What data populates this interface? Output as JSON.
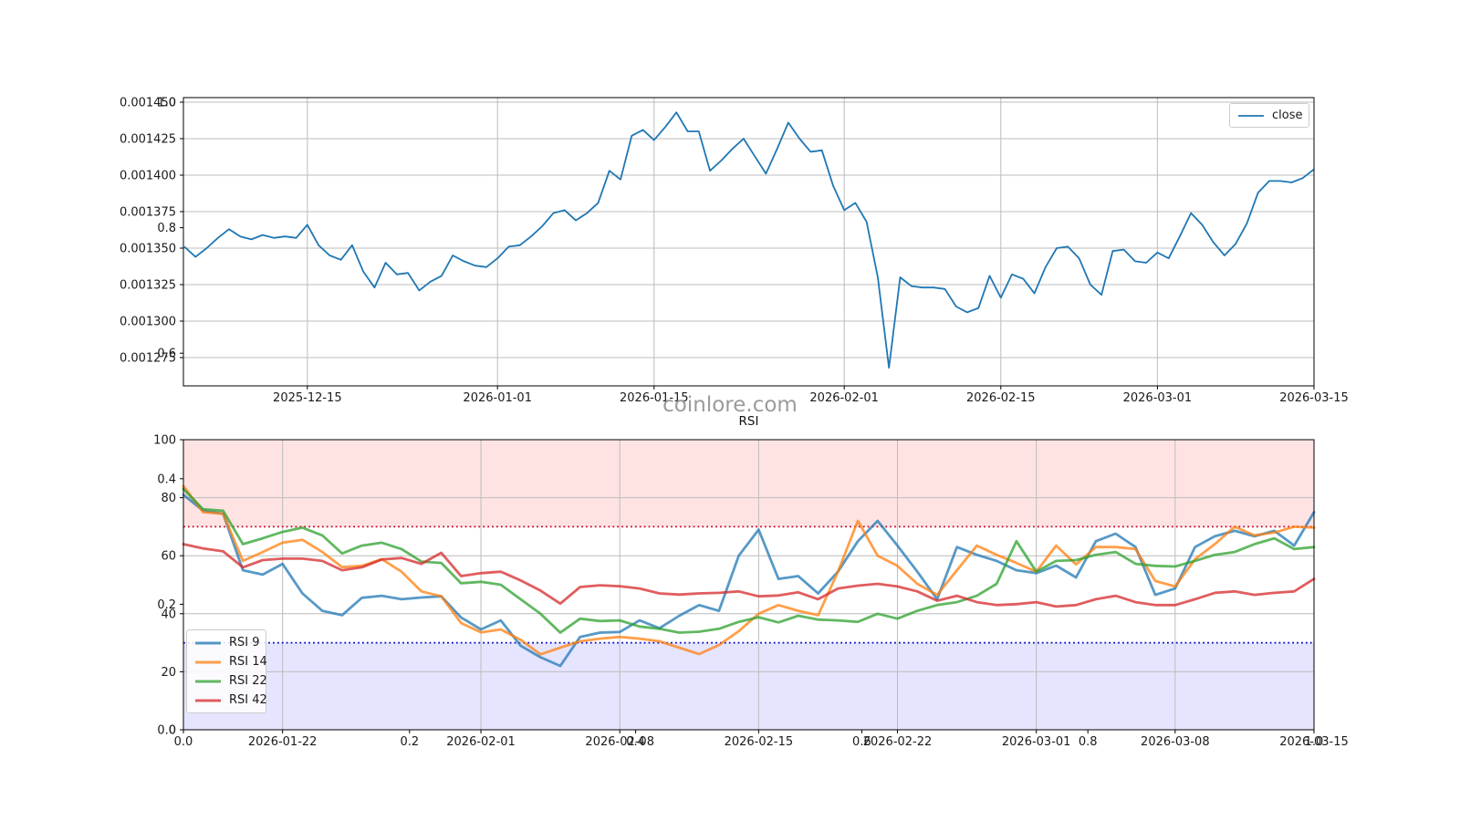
{
  "watermark": "coinlore.com",
  "overlay_axis": {
    "x_tick_labels": [
      "0.0",
      "0.2",
      "0.4",
      "0.6",
      "0.8",
      "1.0"
    ],
    "y_tick_labels": [
      "1.0",
      "0.8",
      "0.6",
      "0.4",
      "0.2",
      "0.0"
    ]
  },
  "chart_data": [
    {
      "type": "line",
      "id": "price",
      "title": "",
      "legend_position": "upper right",
      "grid": true,
      "x": [
        "2025-12-04",
        "2025-12-05",
        "2025-12-06",
        "2025-12-07",
        "2025-12-08",
        "2025-12-09",
        "2025-12-10",
        "2025-12-11",
        "2025-12-12",
        "2025-12-13",
        "2025-12-14",
        "2025-12-15",
        "2025-12-16",
        "2025-12-17",
        "2025-12-18",
        "2025-12-19",
        "2025-12-20",
        "2025-12-21",
        "2025-12-22",
        "2025-12-23",
        "2025-12-24",
        "2025-12-25",
        "2025-12-26",
        "2025-12-27",
        "2025-12-28",
        "2025-12-29",
        "2025-12-30",
        "2025-12-31",
        "2026-01-01",
        "2026-01-02",
        "2026-01-03",
        "2026-01-04",
        "2026-01-05",
        "2026-01-06",
        "2026-01-07",
        "2026-01-08",
        "2026-01-09",
        "2026-01-10",
        "2026-01-11",
        "2026-01-12",
        "2026-01-13",
        "2026-01-14",
        "2026-01-15",
        "2026-01-16",
        "2026-01-17",
        "2026-01-18",
        "2026-01-19",
        "2026-01-20",
        "2026-01-21",
        "2026-01-22",
        "2026-01-23",
        "2026-01-24",
        "2026-01-25",
        "2026-01-26",
        "2026-01-27",
        "2026-01-28",
        "2026-01-29",
        "2026-01-30",
        "2026-01-31",
        "2026-02-01",
        "2026-02-02",
        "2026-02-03",
        "2026-02-04",
        "2026-02-05",
        "2026-02-06",
        "2026-02-07",
        "2026-02-08",
        "2026-02-09",
        "2026-02-10",
        "2026-02-11",
        "2026-02-12",
        "2026-02-13",
        "2026-02-14",
        "2026-02-15",
        "2026-02-16",
        "2026-02-17",
        "2026-02-18",
        "2026-02-19",
        "2026-02-20",
        "2026-02-21",
        "2026-02-22",
        "2026-02-23",
        "2026-02-24",
        "2026-02-25",
        "2026-02-26",
        "2026-02-27",
        "2026-02-28",
        "2026-03-01",
        "2026-03-02",
        "2026-03-03",
        "2026-03-04",
        "2026-03-05",
        "2026-03-06",
        "2026-03-07",
        "2026-03-08",
        "2026-03-09",
        "2026-03-10",
        "2026-03-11",
        "2026-03-12",
        "2026-03-13",
        "2026-03-14",
        "2026-03-15"
      ],
      "series": [
        {
          "name": "close",
          "color": "#1f77b4",
          "alpha": 1,
          "values": [
            0.001351,
            0.001344,
            0.00135,
            0.001357,
            0.001363,
            0.001358,
            0.001356,
            0.001359,
            0.001357,
            0.001358,
            0.001357,
            0.001366,
            0.001352,
            0.001345,
            0.001342,
            0.001352,
            0.001334,
            0.001323,
            0.00134,
            0.001332,
            0.001333,
            0.001321,
            0.001327,
            0.001331,
            0.001345,
            0.001341,
            0.001338,
            0.001337,
            0.001343,
            0.001351,
            0.001352,
            0.001358,
            0.001365,
            0.001374,
            0.001376,
            0.001369,
            0.001374,
            0.001381,
            0.001403,
            0.001397,
            0.001427,
            0.001431,
            0.001424,
            0.001433,
            0.001443,
            0.00143,
            0.00143,
            0.001403,
            0.00141,
            0.001418,
            0.001425,
            0.001413,
            0.001401,
            0.001418,
            0.001436,
            0.001425,
            0.001416,
            0.001417,
            0.001393,
            0.001376,
            0.001381,
            0.001368,
            0.00133,
            0.001268,
            0.00133,
            0.001324,
            0.001323,
            0.001323,
            0.001322,
            0.00131,
            0.001306,
            0.001309,
            0.001331,
            0.001316,
            0.001332,
            0.001329,
            0.001319,
            0.001337,
            0.00135,
            0.001351,
            0.001343,
            0.001325,
            0.001318,
            0.001348,
            0.001349,
            0.001341,
            0.00134,
            0.001347,
            0.001343,
            0.001358,
            0.001374,
            0.001366,
            0.001354,
            0.001345,
            0.001353,
            0.001367,
            0.001388,
            0.001396,
            0.001396,
            0.001395,
            0.001398,
            0.001404
          ]
        }
      ],
      "x_tick_labels": [
        "2025-12-15",
        "2026-01-01",
        "2026-01-15",
        "2026-02-01",
        "2026-02-15",
        "2026-03-01",
        "2026-03-15"
      ],
      "y_tick_labels": [
        "0.001450",
        "0.001425",
        "0.001400",
        "0.001375",
        "0.001350",
        "0.001325",
        "0.001300",
        "0.001275"
      ],
      "ylim": [
        0.001255625,
        0.001453125
      ]
    },
    {
      "type": "line",
      "id": "rsi",
      "title": "RSI",
      "legend_position": "lower left",
      "grid": true,
      "x": [
        "2026-01-17",
        "2026-01-18",
        "2026-01-19",
        "2026-01-20",
        "2026-01-21",
        "2026-01-22",
        "2026-01-23",
        "2026-01-24",
        "2026-01-25",
        "2026-01-26",
        "2026-01-27",
        "2026-01-28",
        "2026-01-29",
        "2026-01-30",
        "2026-01-31",
        "2026-02-01",
        "2026-02-02",
        "2026-02-03",
        "2026-02-04",
        "2026-02-05",
        "2026-02-06",
        "2026-02-07",
        "2026-02-08",
        "2026-02-09",
        "2026-02-10",
        "2026-02-11",
        "2026-02-12",
        "2026-02-13",
        "2026-02-14",
        "2026-02-15",
        "2026-02-16",
        "2026-02-17",
        "2026-02-18",
        "2026-02-19",
        "2026-02-20",
        "2026-02-21",
        "2026-02-22",
        "2026-02-23",
        "2026-02-24",
        "2026-02-25",
        "2026-02-26",
        "2026-02-27",
        "2026-02-28",
        "2026-03-01",
        "2026-03-02",
        "2026-03-03",
        "2026-03-04",
        "2026-03-05",
        "2026-03-06",
        "2026-03-07",
        "2026-03-08",
        "2026-03-09",
        "2026-03-10",
        "2026-03-11",
        "2026-03-12",
        "2026-03-13",
        "2026-03-14",
        "2026-03-15"
      ],
      "series": [
        {
          "name": "RSI 9",
          "color": "#1f77b4",
          "alpha": 0.75,
          "values": [
            81,
            75.5,
            74.5,
            55,
            53.5,
            57.2,
            47,
            41,
            39.5,
            45.5,
            46.2,
            45,
            45.6,
            46,
            38.7,
            34.6,
            37.7,
            29,
            25,
            22,
            32,
            33.5,
            33.7,
            37.7,
            35,
            39.3,
            43,
            41,
            60,
            69,
            52,
            53,
            47,
            54.5,
            65,
            72,
            63.5,
            54.5,
            45,
            63,
            60.3,
            58.2,
            55,
            54,
            56.6,
            52.5,
            65,
            67.6,
            63,
            46.5,
            48.7,
            63,
            66.7,
            68.6,
            66.7,
            68.6,
            63.5,
            75
          ]
        },
        {
          "name": "RSI 14",
          "color": "#ff7f0e",
          "alpha": 0.75,
          "values": [
            84,
            75,
            74.5,
            58.2,
            61.3,
            64.5,
            65.5,
            61.3,
            56.1,
            56.5,
            58.8,
            54.5,
            47.7,
            46,
            36.8,
            33.6,
            34.6,
            31,
            26,
            28.3,
            30.5,
            31.4,
            32,
            31.4,
            30.5,
            28.3,
            26.1,
            29.2,
            34,
            40,
            43,
            41,
            39.5,
            54.5,
            72,
            60,
            56.5,
            50.3,
            46.5,
            55,
            63.5,
            60.3,
            57.5,
            54.5,
            63.5,
            57,
            63,
            63,
            62.3,
            51.3,
            49.4,
            58.8,
            64,
            70,
            67,
            68,
            70,
            69.7
          ]
        },
        {
          "name": "RSI 22",
          "color": "#2ca02c",
          "alpha": 0.75,
          "values": [
            83,
            76,
            75.5,
            64,
            66,
            68.2,
            69.7,
            67,
            60.8,
            63.5,
            64.5,
            62.3,
            58,
            57.5,
            50.5,
            51,
            50,
            45,
            40,
            33.5,
            38.3,
            37.5,
            37.7,
            35.6,
            34.8,
            33.5,
            33.8,
            34.8,
            37.2,
            38.8,
            37,
            39.3,
            38,
            37.7,
            37.2,
            40,
            38.3,
            41,
            43,
            44,
            46.2,
            50.3,
            65,
            54.5,
            58.2,
            58.5,
            60.3,
            61.3,
            57.2,
            56.5,
            56.3,
            58.2,
            60.3,
            61.3,
            64,
            66,
            62.3,
            63
          ]
        },
        {
          "name": "RSI 42",
          "color": "#d62728",
          "alpha": 0.75,
          "values": [
            64,
            62.5,
            61.5,
            56,
            58.5,
            59,
            59,
            58.2,
            55,
            56,
            58.7,
            59.2,
            57.2,
            61,
            53,
            54,
            54.5,
            51.5,
            48,
            43.5,
            49.2,
            49.8,
            49.5,
            48.7,
            47,
            46.6,
            47,
            47.2,
            47.7,
            46,
            46.3,
            47.4,
            45,
            48.7,
            49.7,
            50.3,
            49.4,
            47.7,
            44.5,
            46.2,
            44,
            43,
            43.3,
            44,
            42.5,
            43,
            45,
            46.2,
            44,
            43,
            43,
            45,
            47.2,
            47.7,
            46.5,
            47.2,
            47.7,
            52
          ]
        }
      ],
      "bands": [
        {
          "from": 70,
          "to": 100,
          "color": "rgba(255,0,0,0.11)"
        },
        {
          "from": 0,
          "to": 30,
          "color": "rgba(0,0,255,0.10)"
        }
      ],
      "hlines": [
        {
          "value": 70,
          "color": "#cc0022",
          "style": "dotted"
        },
        {
          "value": 30,
          "color": "#0000cc",
          "style": "dotted"
        }
      ],
      "x_tick_labels": [
        "2026-01-22",
        "2026-02-01",
        "2026-02-08",
        "2026-02-15",
        "2026-02-22",
        "2026-03-01",
        "2026-03-08",
        "2026-03-15"
      ],
      "y_tick_labels": [
        "100",
        "80",
        "60",
        "40",
        "20",
        "0"
      ],
      "ylim": [
        0,
        100
      ]
    }
  ]
}
